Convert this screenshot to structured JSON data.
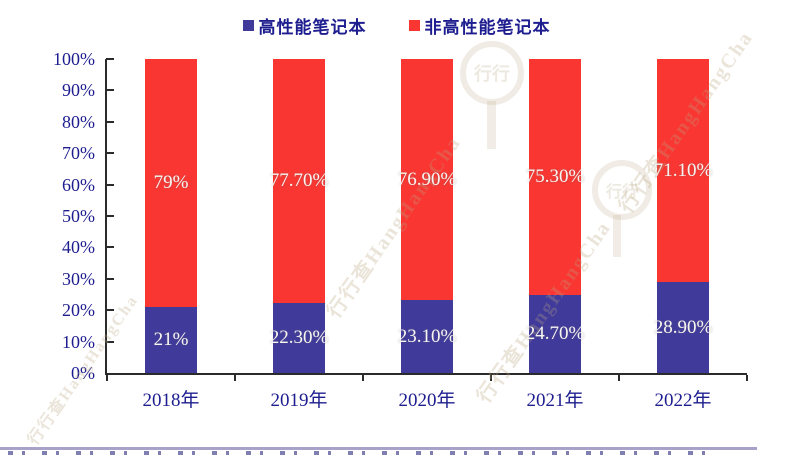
{
  "chart_data": {
    "type": "bar",
    "variant": "stacked-percent-column",
    "title": "",
    "categories": [
      "2018年",
      "2019年",
      "2020年",
      "2021年",
      "2022年"
    ],
    "series": [
      {
        "name": "高性能笔记本",
        "color": "#403a9b",
        "values": [
          21,
          22.3,
          23.1,
          24.7,
          28.9
        ],
        "labels": [
          "21%",
          "22.30%",
          "23.10%",
          "24.70%",
          "28.90%"
        ]
      },
      {
        "name": "非高性能笔记本",
        "color": "#fa3632",
        "values": [
          79,
          77.7,
          76.9,
          75.3,
          71.1
        ],
        "labels": [
          "79%",
          "77.70%",
          "76.90%",
          "75.30%",
          "71.10%"
        ]
      }
    ],
    "xlabel": "",
    "ylabel": "",
    "ylim": [
      0,
      100
    ],
    "yticks": [
      "0%",
      "10%",
      "20%",
      "30%",
      "40%",
      "50%",
      "60%",
      "70%",
      "80%",
      "90%",
      "100%"
    ],
    "legend_position": "top",
    "grid": false,
    "label_color": "#ffffff",
    "axis_text_color": "#1d1d8f",
    "axis_line_color": "#2b2b2b"
  },
  "watermark": {
    "brand": "行行查",
    "latin": "HangHangCha",
    "logo_inner": "行行"
  },
  "footer": {
    "divider_color": "#a8a2c8"
  }
}
